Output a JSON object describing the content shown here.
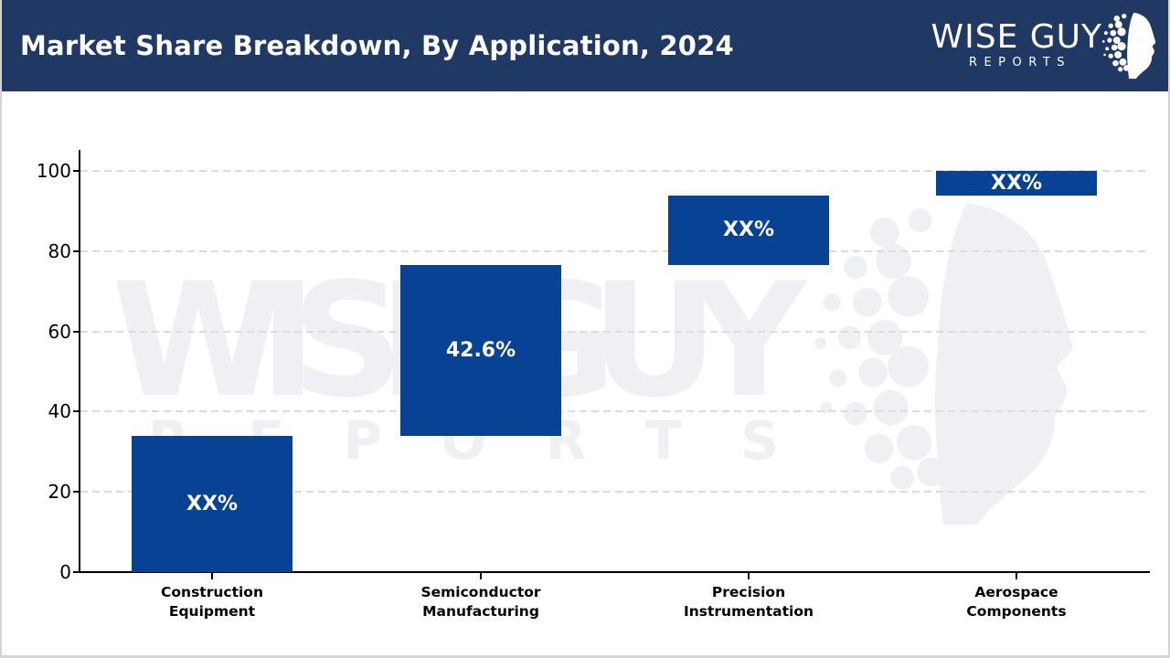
{
  "header": {
    "title": "Market Share Breakdown, By Application, 2024",
    "bg_color": "#1f3864",
    "brand": {
      "line1": "WISE GUY",
      "line2": "REPORTS"
    }
  },
  "watermark": {
    "line1": "WISE GUY",
    "line2": "R E P O R T S",
    "color": "#eef0f3"
  },
  "chart_data": {
    "type": "bar",
    "subtype": "waterfall",
    "title": "Market Share Breakdown, By Application, 2024",
    "categories": [
      "Construction Equipment",
      "Semiconductor Manufacturing",
      "Precision Instrumentation",
      "Aerospace Components"
    ],
    "category_label_lines": [
      [
        "Construction",
        "Equipment"
      ],
      [
        "Semiconductor",
        "Manufacturing"
      ],
      [
        "Precision",
        "Instrumentation"
      ],
      [
        "Aerospace",
        "Components"
      ]
    ],
    "segments": [
      {
        "category": "Construction Equipment",
        "start": 0,
        "end": 34,
        "label": "XX%"
      },
      {
        "category": "Semiconductor Manufacturing",
        "start": 34,
        "end": 76.6,
        "label": "42.6%"
      },
      {
        "category": "Precision Instrumentation",
        "start": 76.6,
        "end": 93.8,
        "label": "XX%"
      },
      {
        "category": "Aerospace Components",
        "start": 93.8,
        "end": 100,
        "label": "XX%"
      }
    ],
    "ylim": [
      0,
      100
    ],
    "yticks": [
      0,
      20,
      40,
      60,
      80,
      100
    ],
    "xlabel": "",
    "ylabel": "",
    "grid": "dashed-horizontal",
    "legend": "none",
    "bar_color": "#084294",
    "bar_label_color": "#ffffff",
    "gridline_color": "#dcdcdc",
    "axis_color": "#000000"
  }
}
